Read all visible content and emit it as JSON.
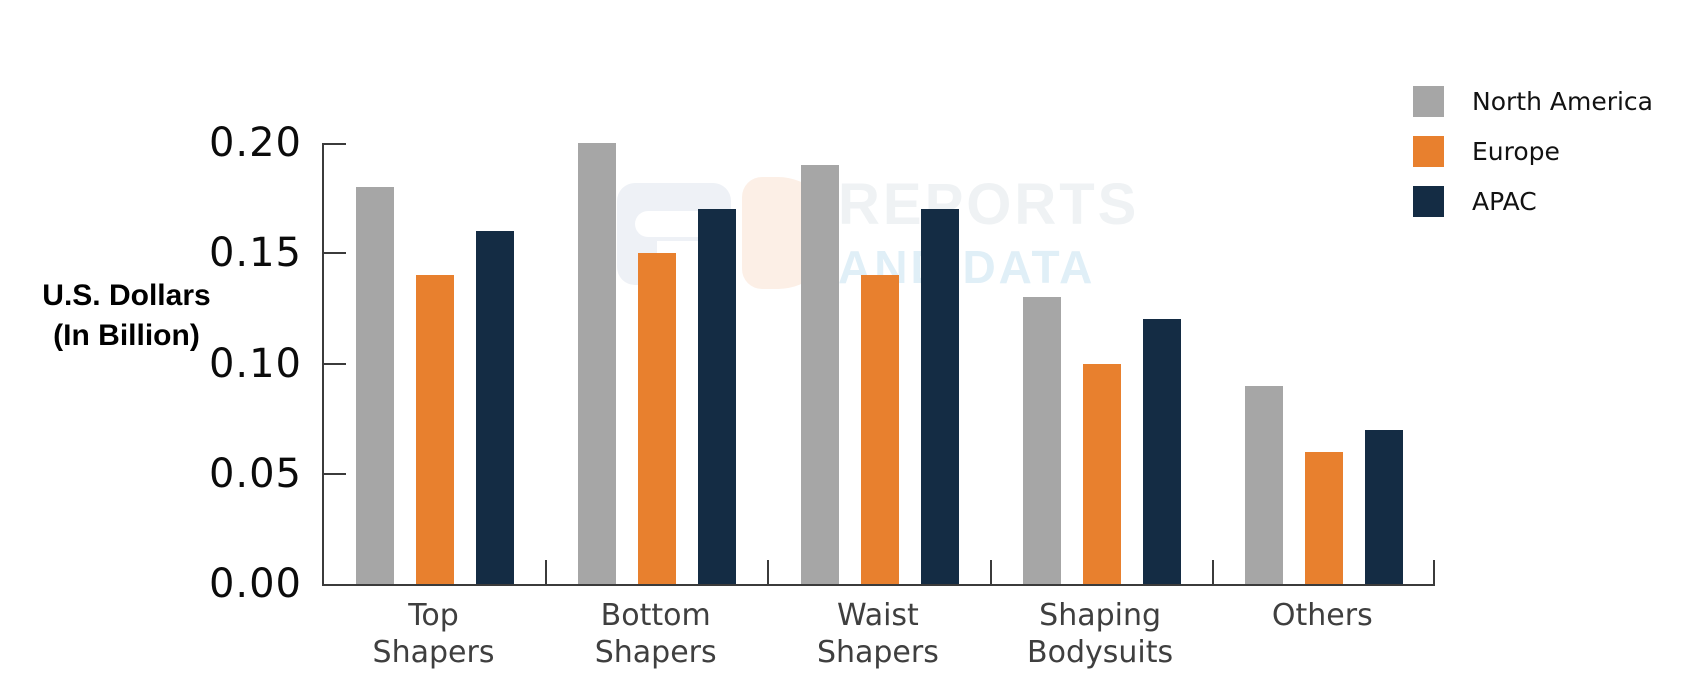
{
  "y_axis": {
    "title_line1": "U.S. Dollars",
    "title_line2": "(In Billion)"
  },
  "watermark": {
    "line1": "REPORTS",
    "line2": "AND DATA",
    "logo": "rd-logo-icon"
  },
  "colors": {
    "north_america": "#a6a6a6",
    "europe": "#e8802e",
    "apac": "#142c44",
    "axis": "#3b3b3b"
  },
  "chart_data": {
    "type": "bar",
    "title": "",
    "xlabel": "",
    "ylabel": "U.S. Dollars (In Billion)",
    "categories": [
      "Top Shapers",
      "Bottom Shapers",
      "Waist Shapers",
      "Shaping Bodysuits",
      "Others"
    ],
    "categories_display": [
      [
        "Top",
        "Shapers"
      ],
      [
        "Bottom",
        "Shapers"
      ],
      [
        "Waist",
        "Shapers"
      ],
      [
        "Shaping",
        "Bodysuits"
      ],
      [
        "Others"
      ]
    ],
    "series": [
      {
        "name": "North America",
        "color": "#a6a6a6",
        "values": [
          0.18,
          0.2,
          0.19,
          0.13,
          0.09
        ]
      },
      {
        "name": "Europe",
        "color": "#e8802e",
        "values": [
          0.14,
          0.15,
          0.14,
          0.1,
          0.06
        ]
      },
      {
        "name": "APAC",
        "color": "#142c44",
        "values": [
          0.16,
          0.17,
          0.17,
          0.12,
          0.07
        ]
      }
    ],
    "ylim": [
      0,
      0.2
    ],
    "yticks": [
      "0.00",
      "0.05",
      "0.10",
      "0.15",
      "0.20"
    ],
    "grid": false,
    "legend_position": "top-right"
  }
}
